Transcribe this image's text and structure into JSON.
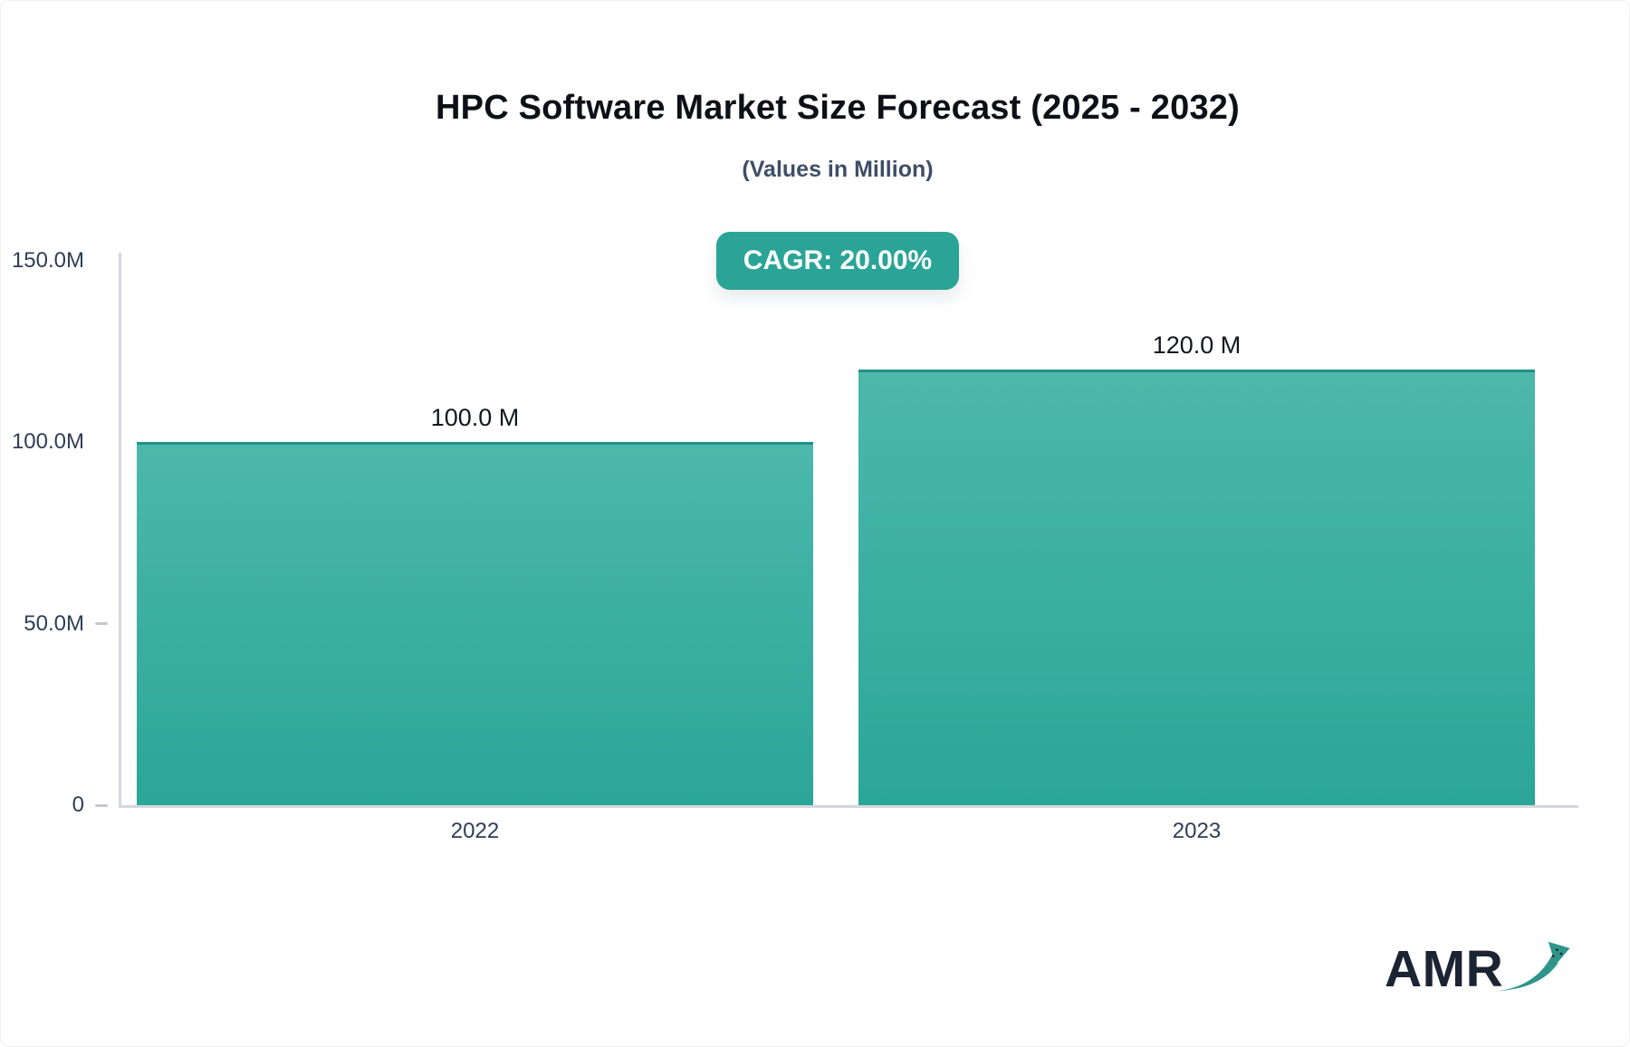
{
  "header": {
    "title": "HPC Software Market Size Forecast (2025 - 2032)",
    "subtitle": "(Values in Million)",
    "cagr_badge": "CAGR: 20.00%"
  },
  "chart_data": {
    "type": "bar",
    "title": "HPC Software Market Size Forecast (2025 - 2032)",
    "subtitle": "(Values in Million)",
    "annotation": "CAGR: 20.00%",
    "categories": [
      "2022",
      "2023"
    ],
    "values": [
      100.0,
      120.0
    ],
    "value_labels": [
      "100.0 M",
      "120.0 M"
    ],
    "unit": "Million",
    "xlabel": "",
    "ylabel": "",
    "ylim": [
      0,
      150
    ],
    "yticks": [
      {
        "value": 150,
        "label": "150.0M",
        "tick_mark": false
      },
      {
        "value": 100,
        "label": "100.0M",
        "tick_mark": false
      },
      {
        "value": 50,
        "label": "50.0M",
        "tick_mark": true
      },
      {
        "value": 0,
        "label": "0",
        "tick_mark": true
      }
    ],
    "grid": false,
    "legend": false,
    "colors": {
      "bar_top": "#4cb8ab",
      "bar_bottom": "#2aa698",
      "bar_edge": "#1f9188",
      "axis_line": "#d3d7de",
      "tick_mark": "#c3c8d1",
      "axis_label": "#2f3e57",
      "value_label": "#12171f",
      "badge_bg": "#2aa496",
      "badge_text": "#ffffff"
    }
  },
  "branding": {
    "logo_text": "AMR",
    "logo_text_color": "#1b2433",
    "logo_arrow_color": "#2f958b"
  }
}
